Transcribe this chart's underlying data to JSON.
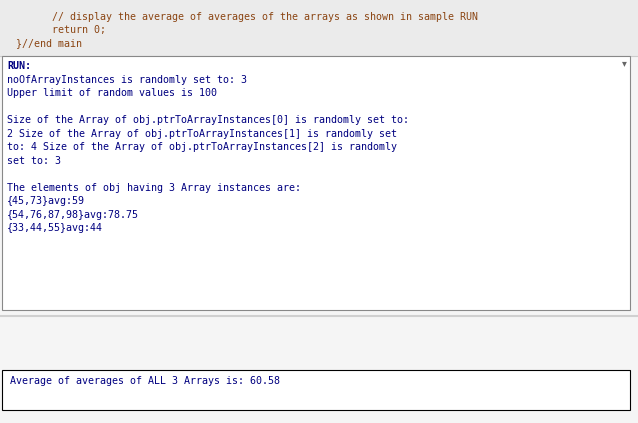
{
  "bg_top": "#e8e8e8",
  "bg_middle": "#f5f5f5",
  "white": "#ffffff",
  "border_color": "#888888",
  "border_color_bottom": "#000000",
  "code_color": "#8b4513",
  "run_color": "#000080",
  "header_lines": [
    "        // display the average of averages of the arrays as shown in sample RUN",
    "        return 0;",
    "  }//end main"
  ],
  "run_box_lines": [
    {
      "text": "RUN:",
      "bold": true
    },
    {
      "text": "noOfArrayInstances is randomly set to: 3",
      "bold": false
    },
    {
      "text": "Upper limit of random values is 100",
      "bold": false
    },
    {
      "text": "",
      "bold": false
    },
    {
      "text": "Size of the Array of obj.ptrToArrayInstances[0] is randomly set to:",
      "bold": false
    },
    {
      "text": "2 Size of the Array of obj.ptrToArrayInstances[1] is randomly set",
      "bold": false
    },
    {
      "text": "to: 4 Size of the Array of obj.ptrToArrayInstances[2] is randomly",
      "bold": false
    },
    {
      "text": "set to: 3",
      "bold": false
    },
    {
      "text": "",
      "bold": false
    },
    {
      "text": "The elements of obj having 3 Array instances are:",
      "bold": false
    },
    {
      "text": "{45,73}avg:59",
      "bold": false
    },
    {
      "text": "{54,76,87,98}avg:78.75",
      "bold": false
    },
    {
      "text": "{33,44,55}avg:44",
      "bold": false
    }
  ],
  "bottom_box_line": "Average of averages of ALL 3 Arrays is: 60.58",
  "scroll_indicator": "▾",
  "font_size": 7.2,
  "mono_font": "DejaVu Sans Mono",
  "fig_width": 6.38,
  "fig_height": 4.23,
  "dpi": 100
}
